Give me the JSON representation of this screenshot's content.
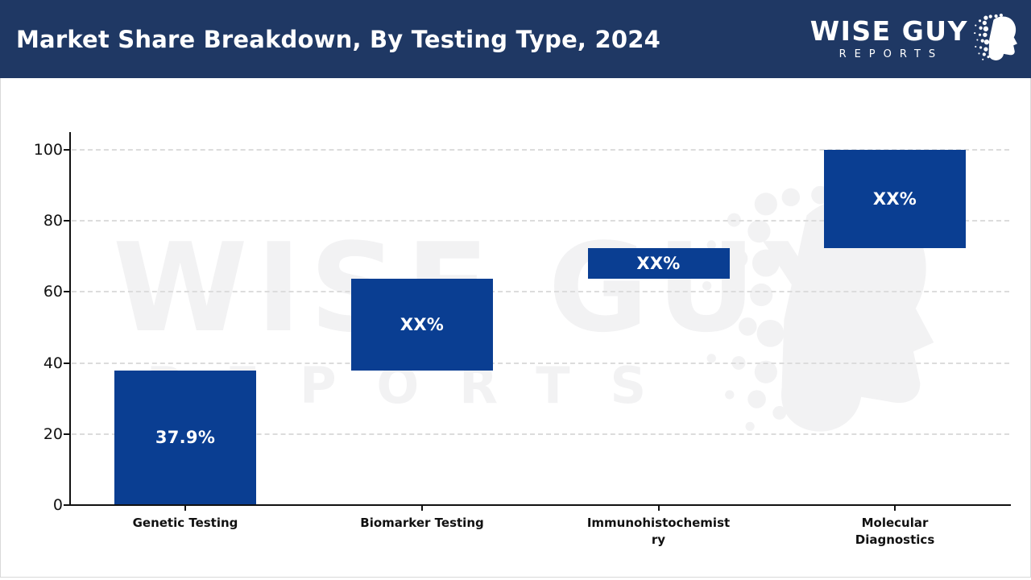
{
  "header": {
    "title": "Market Share Breakdown, By Testing Type, 2024",
    "background_color": "#1f3864",
    "logo": {
      "line1": "WISE GUY",
      "line2": "REPORTS"
    }
  },
  "watermark": {
    "line1": "WISE GUY",
    "line2": "REPORTS",
    "color": "#f2f2f3"
  },
  "chart_data": {
    "type": "bar",
    "subtype": "waterfall",
    "title": "Market Share Breakdown, By Testing Type, 2024",
    "categories": [
      "Genetic Testing",
      "Biomarker Testing",
      "Immunohistochemistry",
      "Molecular Diagnostics"
    ],
    "category_label_lines": [
      [
        "Genetic Testing"
      ],
      [
        "Biomarker Testing"
      ],
      [
        "Immunohistochemist",
        "ry"
      ],
      [
        "Molecular",
        "Diagnostics"
      ]
    ],
    "series": [
      {
        "category": "Genetic Testing",
        "start": 0,
        "end": 37.9,
        "label": "37.9%"
      },
      {
        "category": "Biomarker Testing",
        "start": 37.9,
        "end": 63.7,
        "label": "XX%"
      },
      {
        "category": "Immunohistochemistry",
        "start": 63.7,
        "end": 72.3,
        "label": "XX%"
      },
      {
        "category": "Molecular Diagnostics",
        "start": 72.3,
        "end": 100,
        "label": "XX%"
      }
    ],
    "xlabel": "",
    "ylabel": "",
    "ylim": [
      0,
      105
    ],
    "y_ticks": [
      0,
      20,
      40,
      60,
      80,
      100
    ],
    "grid": "horizontal dashed",
    "grid_color": "#dcdcdc",
    "bar_color": "#0a3e92",
    "value_label_color": "#ffffff",
    "legend": "none"
  }
}
